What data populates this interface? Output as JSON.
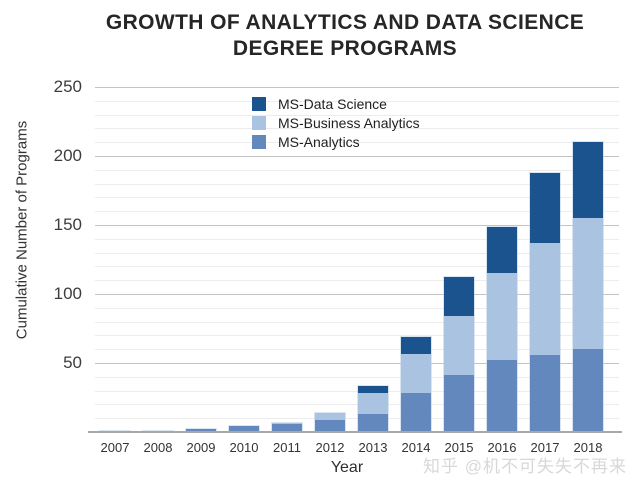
{
  "title": {
    "line1": "GROWTH OF ANALYTICS AND DATA SCIENCE",
    "line2": "DEGREE PROGRAMS"
  },
  "axes": {
    "ylabel": "Cumulative Number of Programs",
    "xlabel": "Year",
    "ymin": 0,
    "ymax": 250,
    "major_tick_step": 50,
    "minor_tick_step": 10,
    "ytick_labels": [
      "250",
      "200",
      "150",
      "100",
      "50"
    ]
  },
  "legend": {
    "items": [
      {
        "label": "MS-Data Science",
        "color": "#1b538e"
      },
      {
        "label": "MS-Business Analytics",
        "color": "#a9c3e1"
      },
      {
        "label": "MS-Analytics",
        "color": "#6288bd"
      }
    ]
  },
  "chart_data": {
    "type": "bar",
    "stacked": true,
    "title": "GROWTH OF ANALYTICS AND DATA SCIENCE DEGREE PROGRAMS",
    "xlabel": "Year",
    "ylabel": "Cumulative Number of Programs",
    "ylim": [
      0,
      250
    ],
    "grid": "horizontal, major every 50, minor every 10",
    "legend_position": "top-center-inside",
    "categories": [
      "2007",
      "2008",
      "2009",
      "2010",
      "2011",
      "2012",
      "2013",
      "2014",
      "2015",
      "2016",
      "2017",
      "2018"
    ],
    "series": [
      {
        "name": "MS-Analytics",
        "color": "#6288bd",
        "values": [
          1,
          1,
          2,
          4,
          6,
          9,
          13,
          28,
          41,
          52,
          56,
          60
        ]
      },
      {
        "name": "MS-Business Analytics",
        "color": "#a9c3e1",
        "values": [
          0,
          0,
          0,
          0,
          1,
          5,
          15,
          28,
          43,
          63,
          81,
          95
        ]
      },
      {
        "name": "MS-Data Science",
        "color": "#1b538e",
        "values": [
          0,
          0,
          0,
          0,
          0,
          0,
          5,
          12,
          28,
          33,
          51,
          55
        ]
      }
    ],
    "totals": [
      1,
      1,
      2,
      4,
      7,
      14,
      33,
      68,
      112,
      148,
      188,
      210
    ]
  },
  "watermark": "知乎 @机不可失失不再来"
}
